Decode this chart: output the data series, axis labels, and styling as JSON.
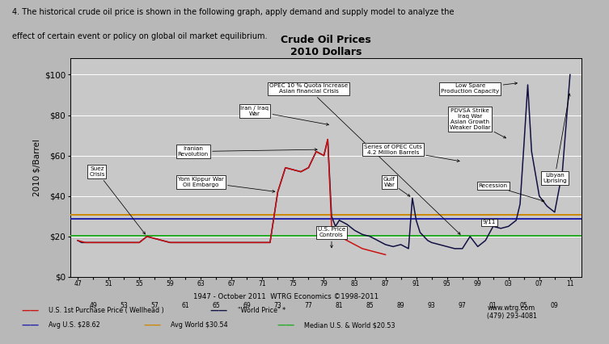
{
  "title1": "Crude Oil Prices",
  "title2": "2010 Dollars",
  "ylabel": "2010 $/Barrel",
  "xlabel_note": "1947 - October 2011  WTRG Economics ©1998-2011",
  "website": "www.wtrg.com\n(479) 293-4081",
  "bg_color": "#b8b8b8",
  "plot_bg": "#c8c8c8",
  "avg_us": 28.52,
  "avg_world": 30.54,
  "median": 20.53,
  "avg_us_color": "#2222aa",
  "avg_world_color": "#cc8800",
  "median_color": "#22aa22",
  "us_price_color": "#cc1111",
  "world_price_color": "#111144",
  "question_line1": "4. The historical crude oil price is shown in the following graph, apply demand and supply model to analyze the",
  "question_line2": "effect of certain event or policy on global oil market equilibrium.",
  "world_price_x": [
    47,
    47.5,
    48,
    49,
    50,
    51,
    52,
    53,
    54,
    55,
    56,
    57,
    58,
    59,
    60,
    61,
    62,
    63,
    64,
    65,
    66,
    67,
    68,
    69,
    70,
    71,
    72,
    73,
    74,
    75,
    76,
    77,
    78,
    79,
    79.5,
    80,
    80.5,
    81,
    82,
    83,
    84,
    85,
    86,
    87,
    88,
    89,
    90,
    90.5,
    91,
    91.5,
    92,
    92.5,
    93,
    94,
    95,
    96,
    97,
    98,
    99,
    100,
    101,
    102,
    103,
    104,
    104.5,
    105,
    105.5,
    106,
    107,
    108,
    109,
    110,
    111
  ],
  "world_price_y": [
    18,
    17,
    17,
    17,
    17,
    17,
    17,
    17,
    17,
    17,
    20,
    19,
    18,
    17,
    17,
    17,
    17,
    17,
    17,
    17,
    17,
    17,
    17,
    17,
    17,
    17,
    17,
    42,
    54,
    53,
    52,
    54,
    62,
    60,
    68,
    30,
    25,
    28,
    26,
    23,
    21,
    20,
    18,
    16,
    15,
    16,
    14,
    39,
    28,
    22,
    20,
    18,
    17,
    16,
    15,
    14,
    14,
    20,
    15,
    18,
    25,
    24,
    25,
    28,
    36,
    65,
    95,
    62,
    40,
    35,
    32,
    52,
    100
  ],
  "us_price_x": [
    47,
    48,
    49,
    50,
    51,
    52,
    53,
    54,
    55,
    56,
    57,
    58,
    59,
    60,
    61,
    62,
    63,
    64,
    65,
    66,
    67,
    68,
    69,
    70,
    71,
    72,
    73,
    74,
    75,
    76,
    77,
    78,
    79,
    79.5,
    80,
    80.5,
    81,
    82,
    83,
    84,
    85,
    86,
    87
  ],
  "us_price_y": [
    18,
    17,
    17,
    17,
    17,
    17,
    17,
    17,
    17,
    20,
    19,
    18,
    17,
    17,
    17,
    17,
    17,
    17,
    17,
    17,
    17,
    17,
    17,
    17,
    17,
    17,
    42,
    54,
    53,
    52,
    54,
    62,
    60,
    68,
    25,
    22,
    20,
    18,
    16,
    14,
    13,
    12,
    11
  ]
}
